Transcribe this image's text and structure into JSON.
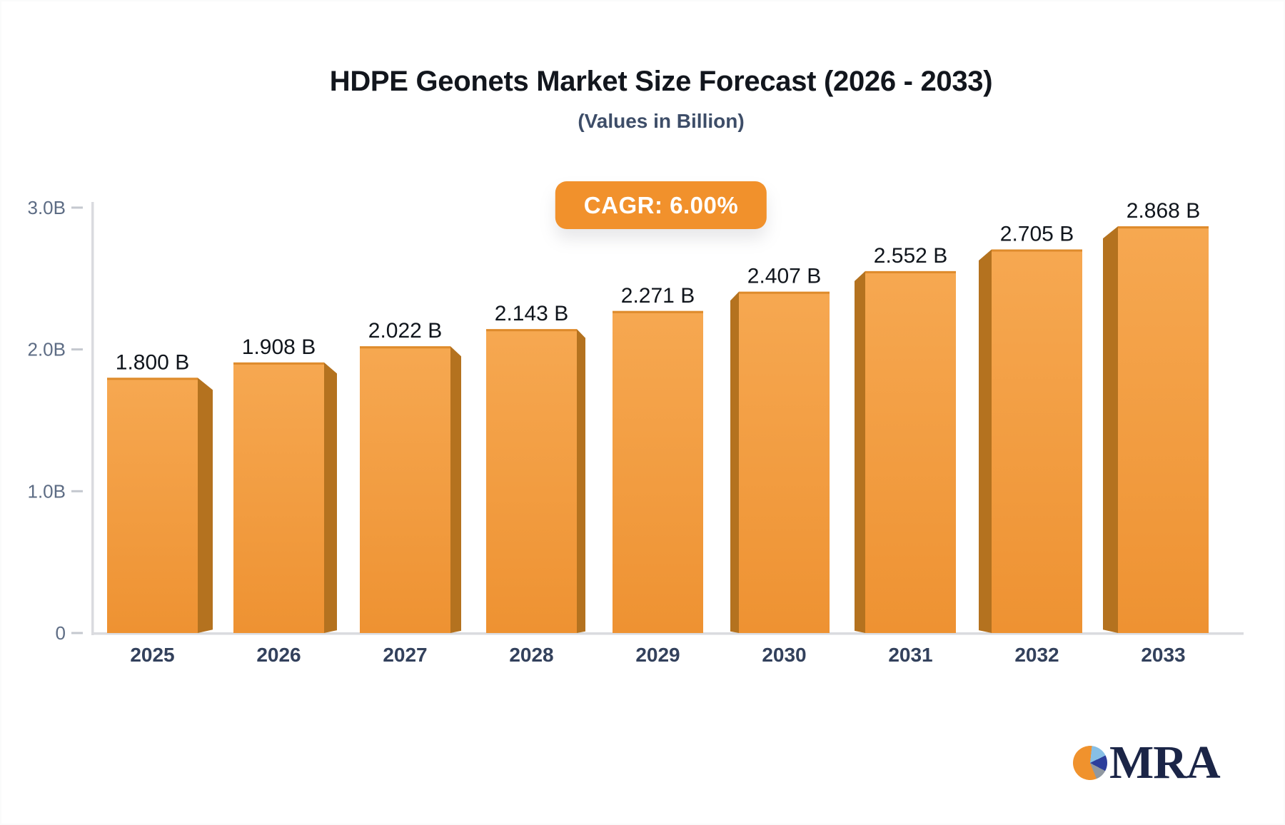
{
  "header": {
    "title": "HDPE Geonets Market Size Forecast (2026 - 2033)",
    "subtitle": "(Values in Billion)",
    "cagr_badge": "CAGR: 6.00%"
  },
  "chart_data": {
    "type": "bar",
    "title": "HDPE Geonets Market Size Forecast (2026 - 2033)",
    "subtitle": "(Values in Billion)",
    "annotation": "CAGR: 6.00%",
    "categories": [
      "2025",
      "2026",
      "2027",
      "2028",
      "2029",
      "2030",
      "2031",
      "2032",
      "2033"
    ],
    "values": [
      1.8,
      1.908,
      2.022,
      2.143,
      2.271,
      2.407,
      2.552,
      2.705,
      2.868
    ],
    "value_labels": [
      "1.800 B",
      "1.908 B",
      "2.022 B",
      "2.143 B",
      "2.271 B",
      "2.407 B",
      "2.552 B",
      "2.705 B",
      "2.868 B"
    ],
    "xlabel": "",
    "ylabel": "",
    "ylim": [
      0,
      3.0
    ],
    "yticks": [
      {
        "label": "0",
        "value": 0
      },
      {
        "label": "1.0B",
        "value": 1.0
      },
      {
        "label": "2.0B",
        "value": 2.0
      },
      {
        "label": "3.0B",
        "value": 3.0
      }
    ],
    "grid": false,
    "legend": false,
    "bar_style": "3d-perspective-center"
  },
  "colors": {
    "accent_orange": "#f1912c",
    "bar_face_top": "#f6a851",
    "bar_face_bottom": "#ee9232",
    "bar_top_edge": "#de8b2c",
    "bar_side": "#b4721f",
    "axis_line": "#dadbdf",
    "tick_mark": "#c4c8cf",
    "tick_label": "#5d6c84",
    "year_label": "#33415c",
    "value_label": "#10151c",
    "badge_text": "#ffffff",
    "logo_navy": "#1b2547",
    "logo_pie_lightblue": "#87bfe5",
    "logo_pie_darkblue": "#2c3e9b",
    "logo_pie_gray": "#9098a1",
    "logo_pie_orange": "#f0922d"
  },
  "logo": {
    "text": "MRA"
  }
}
